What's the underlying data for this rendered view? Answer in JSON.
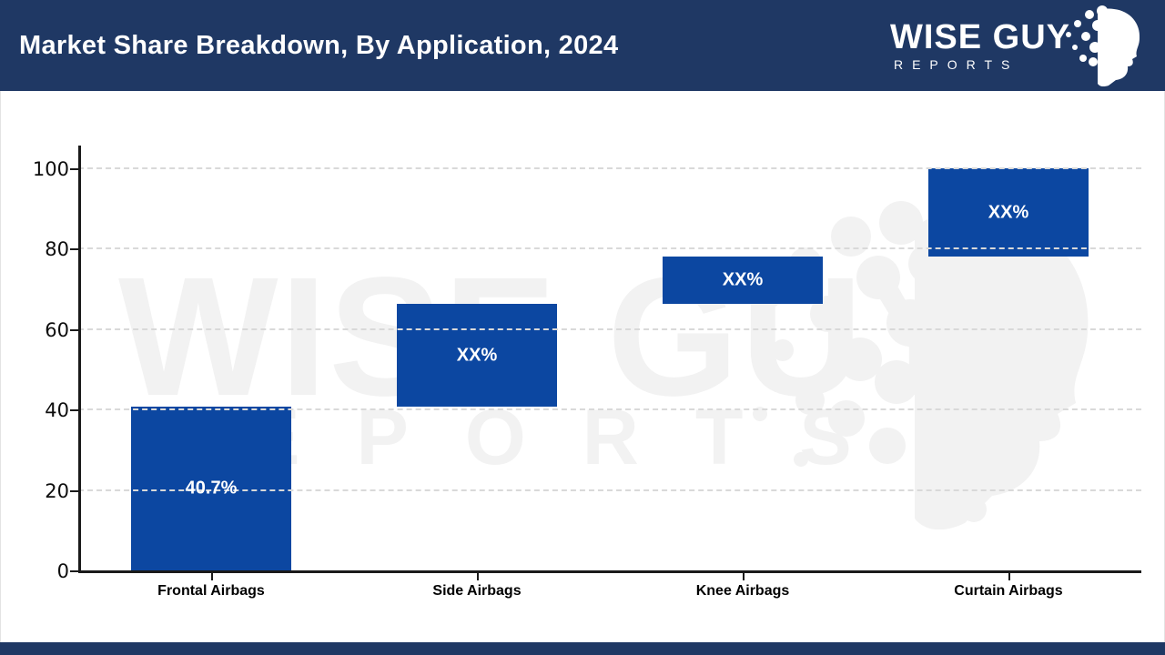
{
  "header": {
    "title": "Market Share Breakdown, By Application, 2024",
    "logo": {
      "line1": "WISE GUY",
      "line2": "REPORTS"
    }
  },
  "watermark": {
    "line1": "WISE GUY",
    "line2": "REPORTS"
  },
  "chart_data": {
    "type": "bar",
    "subtype": "waterfall",
    "title": "Market Share Breakdown, By Application, 2024",
    "categories": [
      "Frontal Airbags",
      "Side Airbags",
      "Knee Airbags",
      "Curtain Airbags"
    ],
    "series": [
      {
        "name": "Market Share %",
        "segments": [
          {
            "category": "Frontal Airbags",
            "start": 0,
            "end": 40.7,
            "label": "40.7%"
          },
          {
            "category": "Side Airbags",
            "start": 40.7,
            "end": 66.3,
            "label": "XX%"
          },
          {
            "category": "Knee Airbags",
            "start": 66.3,
            "end": 78.0,
            "label": "XX%"
          },
          {
            "category": "Curtain Airbags",
            "start": 78.0,
            "end": 100,
            "label": "XX%"
          }
        ]
      }
    ],
    "xlabel": "",
    "ylabel": "",
    "ylim": [
      0,
      100
    ],
    "yticks": [
      0,
      20,
      40,
      60,
      80,
      100
    ],
    "grid": "horizontal-dashed",
    "legend": "none",
    "bar_color": "#0c47a1",
    "bar_label_color": "#ffffff"
  },
  "colors": {
    "header_bg": "#1f3864",
    "footer_bg": "#1f3864",
    "bar": "#0c47a1",
    "gridline": "#d9d9d9",
    "axis": "#1a1a1a",
    "watermark": "#f2f2f2"
  }
}
